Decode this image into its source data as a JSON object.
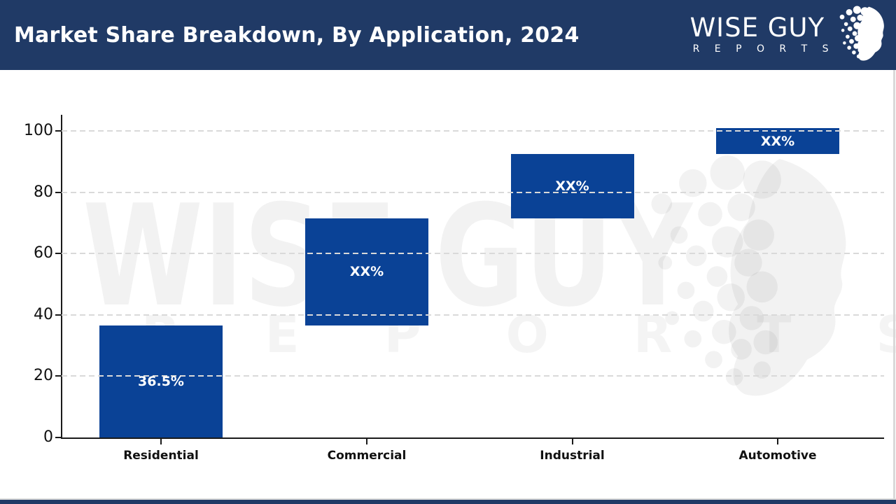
{
  "header": {
    "title": "Market Share Breakdown, By Application, 2024",
    "background_color": "#203a66",
    "logo": {
      "line1": "WISE GUY",
      "line2": "R E P O R T S"
    }
  },
  "watermark": {
    "line1": "WISE GUY",
    "line2": "R E P O R T S"
  },
  "chart_data": {
    "type": "bar",
    "subtype": "floating-segment-breakdown",
    "title": "Market Share Breakdown, By Application, 2024",
    "categories": [
      "Residential",
      "Commercial",
      "Industrial",
      "Automotive"
    ],
    "segments": [
      {
        "category": "Residential",
        "start": 0,
        "end": 36.5,
        "label": "36.5%"
      },
      {
        "category": "Commercial",
        "start": 36.5,
        "end": 71.5,
        "label": "XX%"
      },
      {
        "category": "Industrial",
        "start": 71.5,
        "end": 92.5,
        "label": "XX%"
      },
      {
        "category": "Automotive",
        "start": 92.5,
        "end": 100.8,
        "label": "XX%"
      }
    ],
    "yticks": [
      0,
      20,
      40,
      60,
      80,
      100
    ],
    "ylim": [
      0,
      105
    ],
    "xlabel": "",
    "ylabel": "",
    "grid": true,
    "grid_style": "dashed",
    "legend": false,
    "bar_color": "#0a4296",
    "bar_label_color": "#ffffff"
  }
}
